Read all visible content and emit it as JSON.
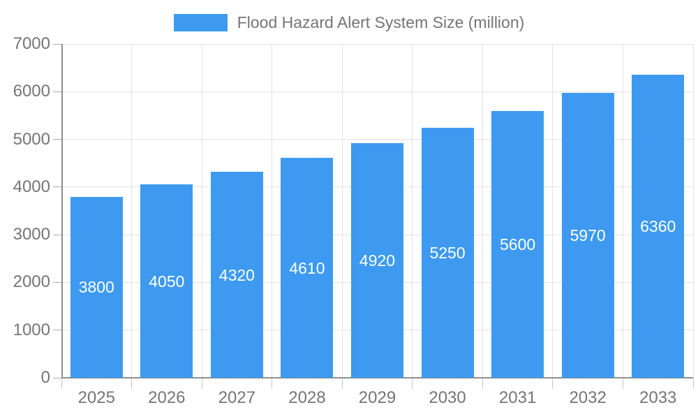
{
  "chart_data": {
    "type": "bar",
    "title": "",
    "legend": {
      "label": "Flood Hazard Alert System Size (million)",
      "position": "top-center"
    },
    "categories": [
      "2025",
      "2026",
      "2027",
      "2028",
      "2029",
      "2030",
      "2031",
      "2032",
      "2033"
    ],
    "values": [
      3800,
      4050,
      4320,
      4610,
      4920,
      5250,
      5600,
      5970,
      6360
    ],
    "bar_labels": [
      "3800",
      "4050",
      "4320",
      "4610",
      "4920",
      "5250",
      "5600",
      "5970",
      "6360"
    ],
    "xlabel": "",
    "ylabel": "",
    "ylim": [
      0,
      7000
    ],
    "yticks": [
      0,
      1000,
      2000,
      3000,
      4000,
      5000,
      6000,
      7000
    ],
    "grid": true,
    "bar_value_labels_centered": true,
    "colors": {
      "bar": "#3d9af0",
      "grid": "#e2e2e2",
      "axis": "#8f8f8f",
      "y_tick_mark": "#adadad",
      "x_tick_mark": "#c6c6c6",
      "tick_text": "#757575",
      "bar_label_text": "#ffffff",
      "background": "#ffffff"
    }
  }
}
